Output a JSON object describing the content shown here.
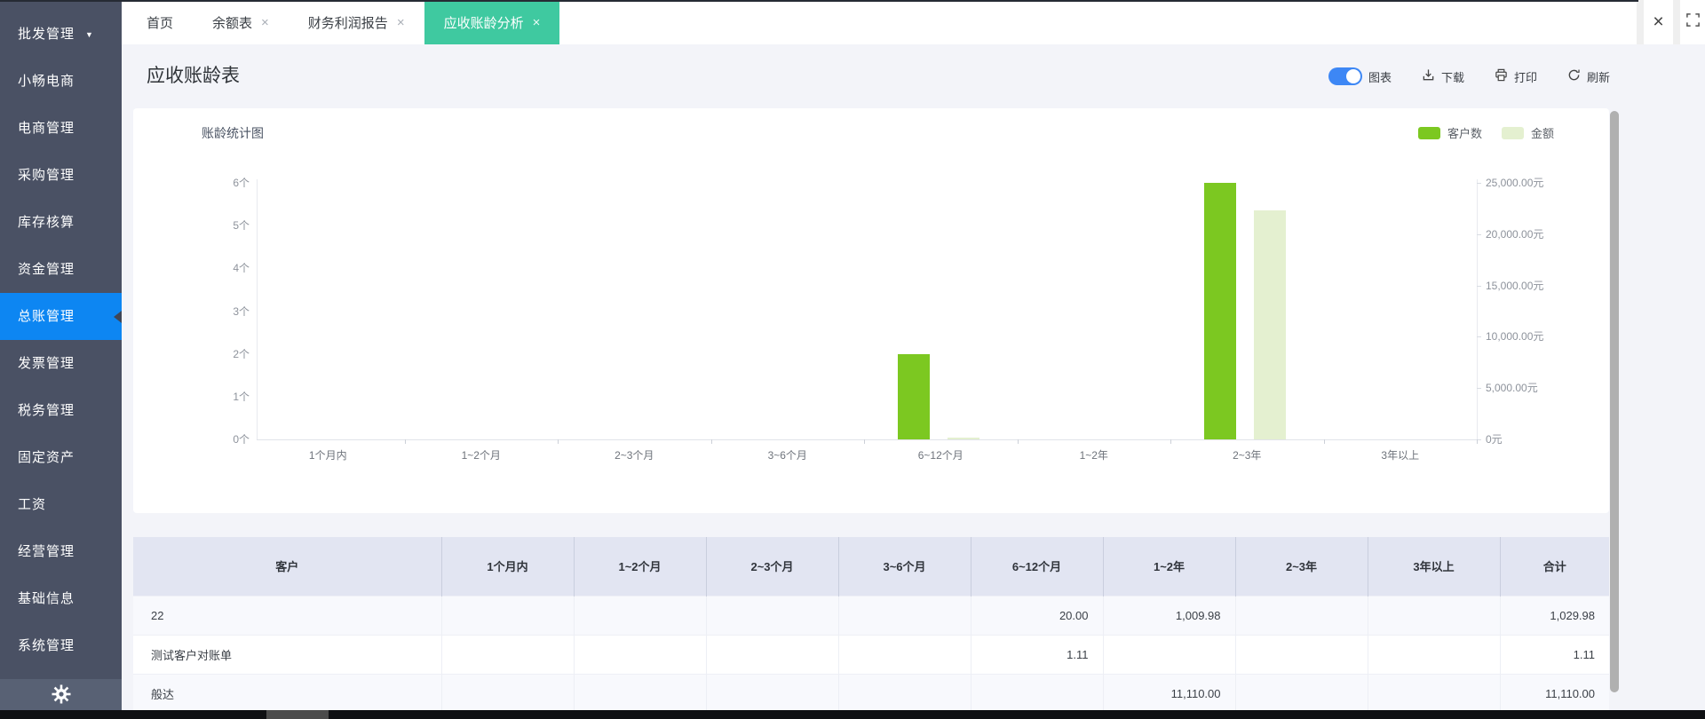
{
  "window": {
    "close_glyph": "×"
  },
  "sidebar": {
    "items": [
      {
        "label": "批发管理",
        "caret": true,
        "active": false
      },
      {
        "label": "小畅电商",
        "active": false
      },
      {
        "label": "电商管理",
        "active": false
      },
      {
        "label": "采购管理",
        "active": false
      },
      {
        "label": "库存核算",
        "active": false
      },
      {
        "label": "资金管理",
        "active": false
      },
      {
        "label": "总账管理",
        "active": true
      },
      {
        "label": "发票管理",
        "active": false
      },
      {
        "label": "税务管理",
        "active": false
      },
      {
        "label": "固定资产",
        "active": false
      },
      {
        "label": "工资",
        "active": false
      },
      {
        "label": "经营管理",
        "active": false
      },
      {
        "label": "基础信息",
        "active": false
      },
      {
        "label": "系统管理",
        "active": false
      }
    ],
    "footer_icon": "gear-icon"
  },
  "tabs": [
    {
      "label": "首页",
      "closable": false,
      "active": false
    },
    {
      "label": "余额表",
      "closable": true,
      "active": false
    },
    {
      "label": "财务利润报告",
      "closable": true,
      "active": false
    },
    {
      "label": "应收账龄分析",
      "closable": true,
      "active": true
    }
  ],
  "page": {
    "title": "应收账龄表"
  },
  "toolbar": {
    "chart_toggle_label": "图表",
    "toggle_on": true,
    "download_label": "下载",
    "print_label": "打印",
    "refresh_label": "刷新"
  },
  "chart_data": {
    "type": "bar",
    "title": "账龄统计图",
    "categories": [
      "1个月内",
      "1~2个月",
      "2~3个月",
      "3~6个月",
      "6~12个月",
      "1~2年",
      "2~3年",
      "3年以上"
    ],
    "series": [
      {
        "name": "客户数",
        "axis": "left",
        "unit": "个",
        "color": "#7cc821",
        "values": [
          0,
          0,
          0,
          0,
          2,
          0,
          6,
          0
        ]
      },
      {
        "name": "金额",
        "axis": "right",
        "unit": "元",
        "color": "#e4f0d0",
        "values": [
          0,
          0,
          0,
          0,
          21.11,
          0,
          22300,
          0
        ]
      }
    ],
    "left_axis": {
      "max": 6,
      "ticks": [
        "0个",
        "1个",
        "2个",
        "3个",
        "4个",
        "5个",
        "6个"
      ]
    },
    "right_axis": {
      "max": 25000,
      "ticks": [
        "0元",
        "5,000.00元",
        "10,000.00元",
        "15,000.00元",
        "20,000.00元",
        "25,000.00元"
      ]
    },
    "legend_position": "top-right",
    "grid": false
  },
  "table": {
    "columns": [
      "客户",
      "1个月内",
      "1~2个月",
      "2~3个月",
      "3~6个月",
      "6~12个月",
      "1~2年",
      "2~3年",
      "3年以上",
      "合计"
    ],
    "rows": [
      {
        "cells": [
          "22",
          "",
          "",
          "",
          "",
          "20.00",
          "1,009.98",
          "",
          "",
          "1,029.98"
        ]
      },
      {
        "cells": [
          "测试客户对账单",
          "",
          "",
          "",
          "",
          "1.11",
          "",
          "",
          "",
          "1.11"
        ]
      },
      {
        "cells": [
          "般达",
          "",
          "",
          "",
          "",
          "",
          "11,110.00",
          "",
          "",
          "11,110.00"
        ],
        "clipped": true
      }
    ]
  },
  "colors": {
    "sidebar_bg": "#4a5164",
    "sidebar_active_blue": "#0d86f2",
    "active_tab_green": "#3fc9a0",
    "toggle_blue": "#3d87f5",
    "bar_green": "#7cc821",
    "bar_light_green": "#e4f0d0",
    "table_header_bg": "#e2e5f2"
  }
}
